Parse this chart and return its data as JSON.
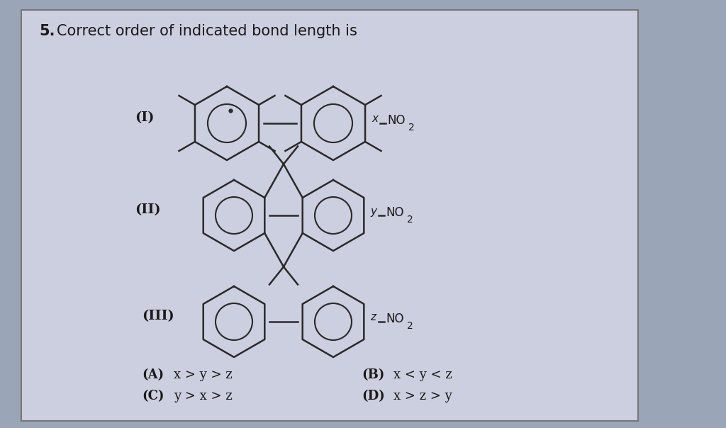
{
  "bg_color": "#9aa5b8",
  "paper_color": "#cccfe0",
  "text_color": "#1a1a1a",
  "title_num": "5.",
  "title_text": "Correct order of indicated bond length is",
  "answer_options": [
    {
      "label": "(A)",
      "text": "x > y > z",
      "col": 0
    },
    {
      "label": "(B)",
      "text": "x < y < z",
      "col": 1
    },
    {
      "label": "(C)",
      "text": "y > x > z",
      "col": 0
    },
    {
      "label": "(D)",
      "text": "x > z > y",
      "col": 1
    }
  ]
}
